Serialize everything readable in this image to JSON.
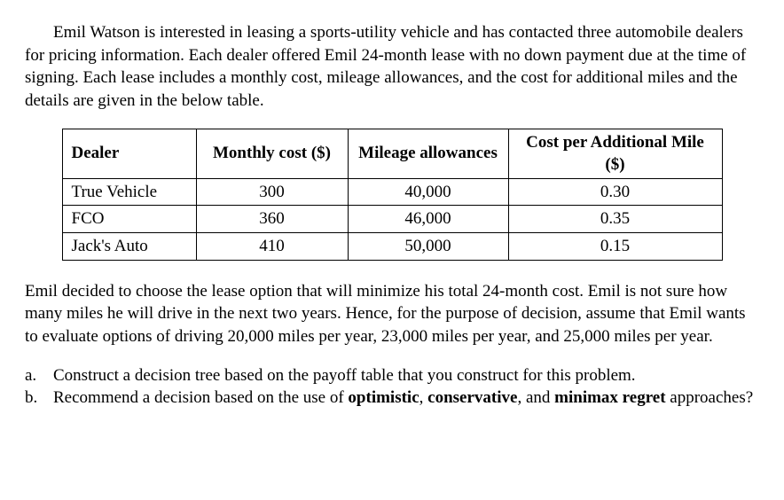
{
  "intro": "Emil Watson is interested in leasing a sports-utility vehicle and has contacted three automobile dealers for pricing information. Each dealer offered Emil 24-month lease with no down payment due at the time of signing. Each lease includes a monthly cost, mileage allowances, and the cost for additional miles and the details are given in the below table.",
  "table": {
    "headers": {
      "dealer": "Dealer",
      "monthly": "Monthly cost ($)",
      "mileage": "Mileage allowances",
      "costper": "Cost per Additional Mile ($)"
    },
    "rows": [
      {
        "dealer": "True Vehicle",
        "monthly": "300",
        "mileage": "40,000",
        "costper": "0.30"
      },
      {
        "dealer": "FCO",
        "monthly": "360",
        "mileage": "46,000",
        "costper": "0.35"
      },
      {
        "dealer": "Jack's Auto",
        "monthly": "410",
        "mileage": "50,000",
        "costper": "0.15"
      }
    ]
  },
  "followup": "Emil decided to choose the lease option that will minimize his total 24-month cost. Emil is not sure how many miles he will drive in the next two years. Hence, for the purpose of decision, assume that Emil wants to evaluate options of driving 20,000 miles per year, 23,000 miles per year, and 25,000 miles per year.",
  "questions": {
    "a": {
      "marker": "a.",
      "text": "Construct a decision tree based on the payoff table that you construct for this problem."
    },
    "b": {
      "marker": "b.",
      "pre": "Recommend a decision based on the use of ",
      "b1": "optimistic",
      "s1": ", ",
      "b2": "conservative",
      "s2": ", and ",
      "b3": "minimax regret",
      "post": " approaches?"
    }
  }
}
